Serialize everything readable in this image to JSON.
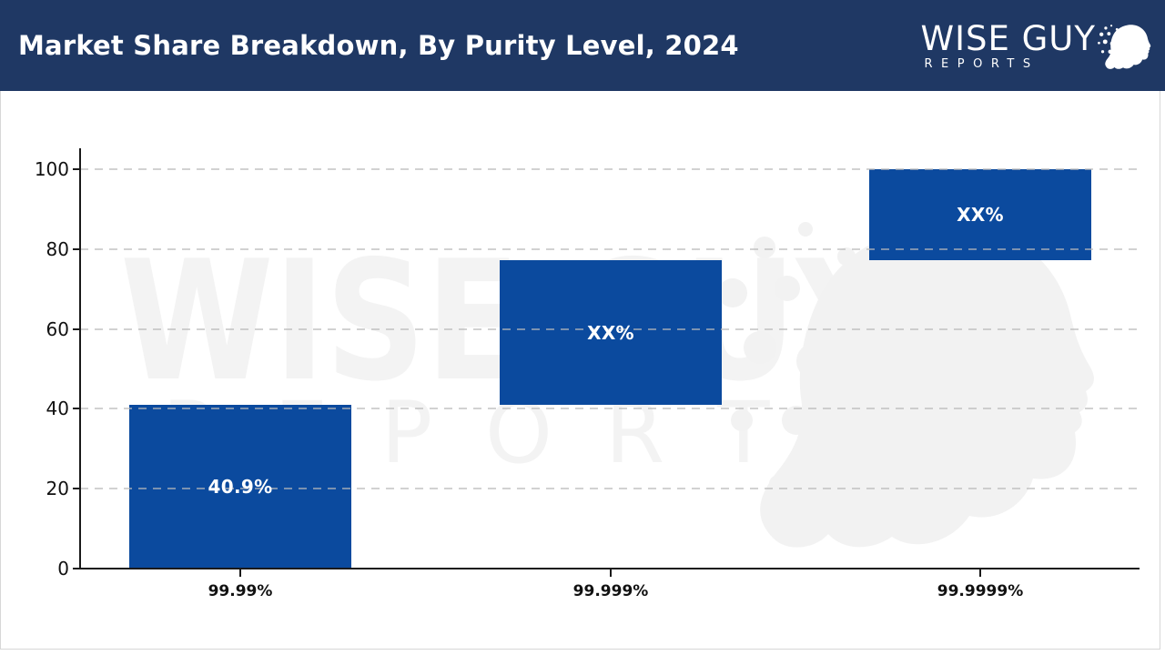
{
  "header": {
    "title": "Market Share Breakdown, By Purity Level, 2024",
    "logo": {
      "line1": "WISE GUY",
      "line2": "REPORTS"
    }
  },
  "watermark": {
    "line1": "WISE GUY",
    "line2": "R E P O R T S"
  },
  "colors": {
    "header_bg": "#1f3864",
    "bar": "#0b4a9e",
    "bar_label": "#ffffff",
    "grid": "#b9b9b9",
    "axis": "#1a1a1a",
    "watermark": "#f3f3f3"
  },
  "chart_data": {
    "type": "bar",
    "subtype": "floating-waterfall",
    "title": "Market Share Breakdown, By Purity Level, 2024",
    "categories": [
      "99.99%",
      "99.999%",
      "99.9999%"
    ],
    "segments": [
      {
        "category": "99.99%",
        "start": 0,
        "end": 40.9,
        "label": "40.9%"
      },
      {
        "category": "99.999%",
        "start": 40.9,
        "end": 77.2,
        "label": "XX%"
      },
      {
        "category": "99.9999%",
        "start": 77.2,
        "end": 100,
        "label": "XX%"
      }
    ],
    "xlabel": "",
    "ylabel": "",
    "ylim": [
      0,
      100
    ],
    "yticks": [
      0,
      20,
      40,
      60,
      80,
      100
    ],
    "grid": "horizontal-dashed",
    "legend": null,
    "bar_color": "#0b4a9e",
    "label_color": "#ffffff"
  }
}
